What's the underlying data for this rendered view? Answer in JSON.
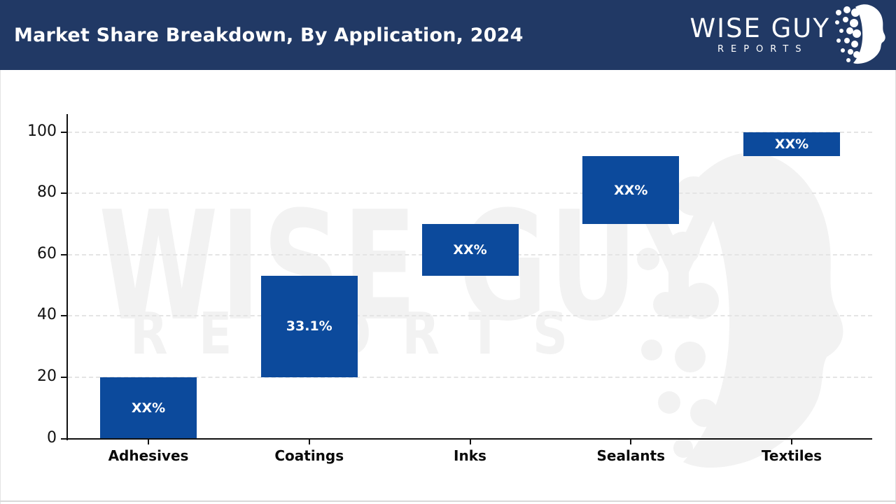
{
  "header": {
    "title": "Market Share Breakdown, By Application, 2024",
    "logo": {
      "line1": "WISE GUY",
      "line2": "REPORTS"
    }
  },
  "watermark": {
    "line1": "WISE GUY",
    "line2": "REPORTS"
  },
  "colors": {
    "header_bg": "#213965",
    "bar": "#0c4a9c",
    "bar_label": "#ffffff",
    "axis": "#111111",
    "gridline": "#e4e4e4",
    "watermark": "#f2f2f2"
  },
  "chart_data": {
    "type": "bar",
    "subtype": "waterfall",
    "title": "Market Share Breakdown, By Application, 2024",
    "categories": [
      "Adhesives",
      "Coatings",
      "Inks",
      "Sealants",
      "Textiles"
    ],
    "segments": [
      {
        "category": "Adhesives",
        "start": 0,
        "end": 20,
        "value": 20,
        "label": "XX%"
      },
      {
        "category": "Coatings",
        "start": 20,
        "end": 53.1,
        "value": 33.1,
        "label": "33.1%"
      },
      {
        "category": "Inks",
        "start": 53.1,
        "end": 69.9,
        "value": 16.8,
        "label": "XX%"
      },
      {
        "category": "Sealants",
        "start": 69.9,
        "end": 92.2,
        "value": 22.3,
        "label": "XX%"
      },
      {
        "category": "Textiles",
        "start": 92.2,
        "end": 100,
        "value": 7.8,
        "label": "XX%"
      }
    ],
    "yticks": [
      0,
      20,
      40,
      60,
      80,
      100
    ],
    "ylim": [
      0,
      100
    ],
    "xlabel": "",
    "ylabel": "",
    "grid": "horizontal-dashed",
    "legend": "none"
  }
}
